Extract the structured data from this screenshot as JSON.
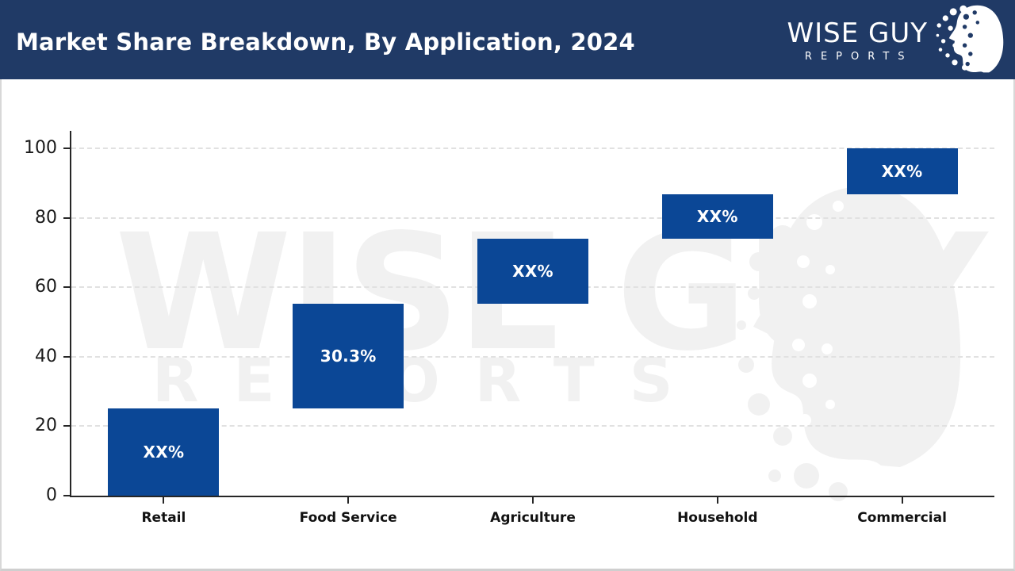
{
  "header": {
    "title": "Market Share Breakdown, By Application, 2024",
    "logo": {
      "wordmark": "WISE GUY",
      "subtext": "REPORTS"
    }
  },
  "watermark": {
    "wordmark": "WISE GUY",
    "subtext": "REPORTS"
  },
  "colors": {
    "header_bg": "#203A66",
    "bar": "#0B4796",
    "bar_label": "#FFFFFF",
    "grid": "#E1E1E1",
    "axis": "#262626",
    "watermark": "#F1F1F1"
  },
  "chart_data": {
    "type": "bar",
    "variant": "waterfall",
    "title": "Market Share Breakdown, By Application, 2024",
    "categories": [
      "Retail",
      "Food Service",
      "Agriculture",
      "Household",
      "Commercial"
    ],
    "values": [
      25,
      30.3,
      18.7,
      12.8,
      13.2
    ],
    "bases": [
      0,
      25,
      55.3,
      74,
      86.8
    ],
    "bar_labels": [
      "XX%",
      "30.3%",
      "XX%",
      "XX%",
      "XX%"
    ],
    "xlabel": "",
    "ylabel": "",
    "yticks": [
      0,
      20,
      40,
      60,
      80,
      100
    ],
    "ylim": [
      0,
      105
    ],
    "grid": "horizontal-dashed",
    "legend": "none"
  }
}
